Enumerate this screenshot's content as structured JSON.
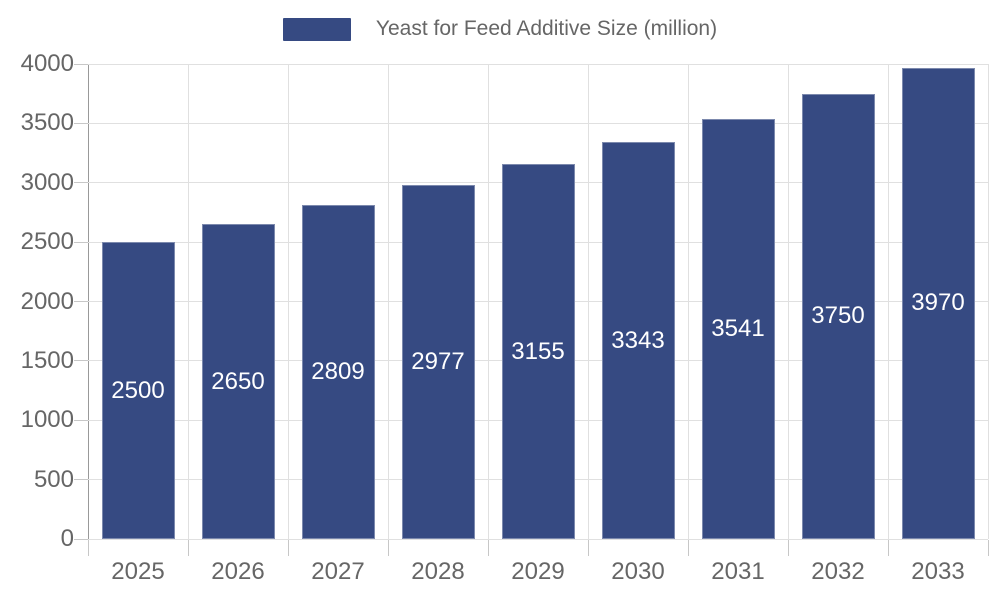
{
  "legend": {
    "label": "Yeast for Feed Additive Size (million)"
  },
  "chart_data": {
    "type": "bar",
    "title": "Yeast for Feed Additive Size (million)",
    "categories": [
      "2025",
      "2026",
      "2027",
      "2028",
      "2029",
      "2030",
      "2031",
      "2032",
      "2033"
    ],
    "values": [
      2500,
      2650,
      2809,
      2977,
      3155,
      3343,
      3541,
      3750,
      3970
    ],
    "series": [
      {
        "name": "Yeast for Feed Additive Size (million)",
        "values": [
          2500,
          2650,
          2809,
          2977,
          3155,
          3343,
          3541,
          3750,
          3970
        ]
      }
    ],
    "xlabel": "",
    "ylabel": "",
    "ylim": [
      0,
      4000
    ],
    "yticks": [
      0,
      500,
      1000,
      1500,
      2000,
      2500,
      3000,
      3500,
      4000
    ],
    "grid": true,
    "legend_position": "top",
    "value_labels": "inside-center",
    "colors": {
      "bar": "#364A82",
      "grid": "#E0E0E0",
      "axis_line": "#999999",
      "tick_mark": "#C7C7C7",
      "tick_label": "#666666",
      "legend_text": "#666666",
      "value_label": "#FFFFFF",
      "background": "#FFFFFF"
    }
  }
}
